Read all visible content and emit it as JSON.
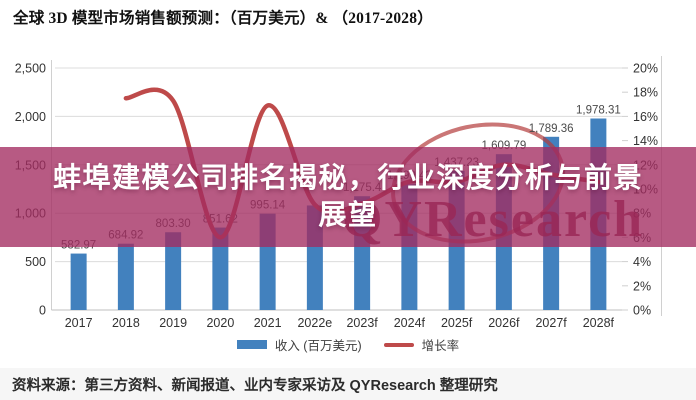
{
  "title": "全球 3D 模型市场销售额预测：（百万美元）& （2017-2028）",
  "overlay_banner": {
    "line1": "蚌埠建模公司排名揭秘，行业深度分析与前景",
    "line2": "展望",
    "background_color": "#A32B60",
    "background_opacity": 0.78,
    "text_color": "#FFFFFF"
  },
  "watermark": {
    "text": "QYResearch",
    "color": "#7A1430",
    "swoosh_color": "#B33C3C"
  },
  "legend": {
    "items": [
      {
        "label": "收入 (百万美元)",
        "swatch": "bar",
        "color": "#4281BE"
      },
      {
        "label": "增长率",
        "swatch": "line",
        "color": "#BE4A4A"
      }
    ]
  },
  "source_note": "资料来源：第三方资料、新闻报道、业内专家采访及 QYResearch 整理研究",
  "chart_data": {
    "type": "bar",
    "title": "全球 3D 模型市场销售额预测：（百万美元）& （2017-2028）",
    "categories": [
      "2017",
      "2018",
      "2019",
      "2020",
      "2021",
      "2022e",
      "2023f",
      "2024f",
      "2025f",
      "2026f",
      "2027f",
      "2028f"
    ],
    "series": [
      {
        "name": "收入 (百万美元)",
        "type": "bar",
        "axis": "left",
        "color": "#4281BE",
        "values": [
          582.97,
          684.92,
          803.3,
          851.62,
          995.14,
          1080,
          1175.4,
          1299.43,
          1437.23,
          1609.79,
          1789.36,
          1978.31
        ],
        "data_labels": [
          "582.97",
          "684.92",
          "803.30",
          "851.62",
          "995.14",
          "",
          "1,175.4",
          "1,299.43",
          "1,437.23",
          "1,609.79",
          "1,789.36",
          "1,978.31"
        ]
      },
      {
        "name": "增长率",
        "type": "line",
        "axis": "right",
        "color": "#BE4A4A",
        "values": [
          null,
          17.5,
          17.3,
          6.0,
          16.9,
          8.7,
          8.8,
          10.6,
          10.6,
          12.0,
          11.2,
          10.6
        ]
      }
    ],
    "y_axis_left": {
      "min": 0,
      "max": 2500,
      "tick_labels": [
        "0",
        "500",
        "1,000",
        "1,500",
        "2,000",
        "2,500"
      ]
    },
    "y_axis_right": {
      "min": 0,
      "max": 20,
      "tick_labels": [
        "0%",
        "2%",
        "4%",
        "6%",
        "8%",
        "10%",
        "12%",
        "14%",
        "16%",
        "18%",
        "20%"
      ]
    },
    "grid": true,
    "legend_position": "bottom"
  }
}
